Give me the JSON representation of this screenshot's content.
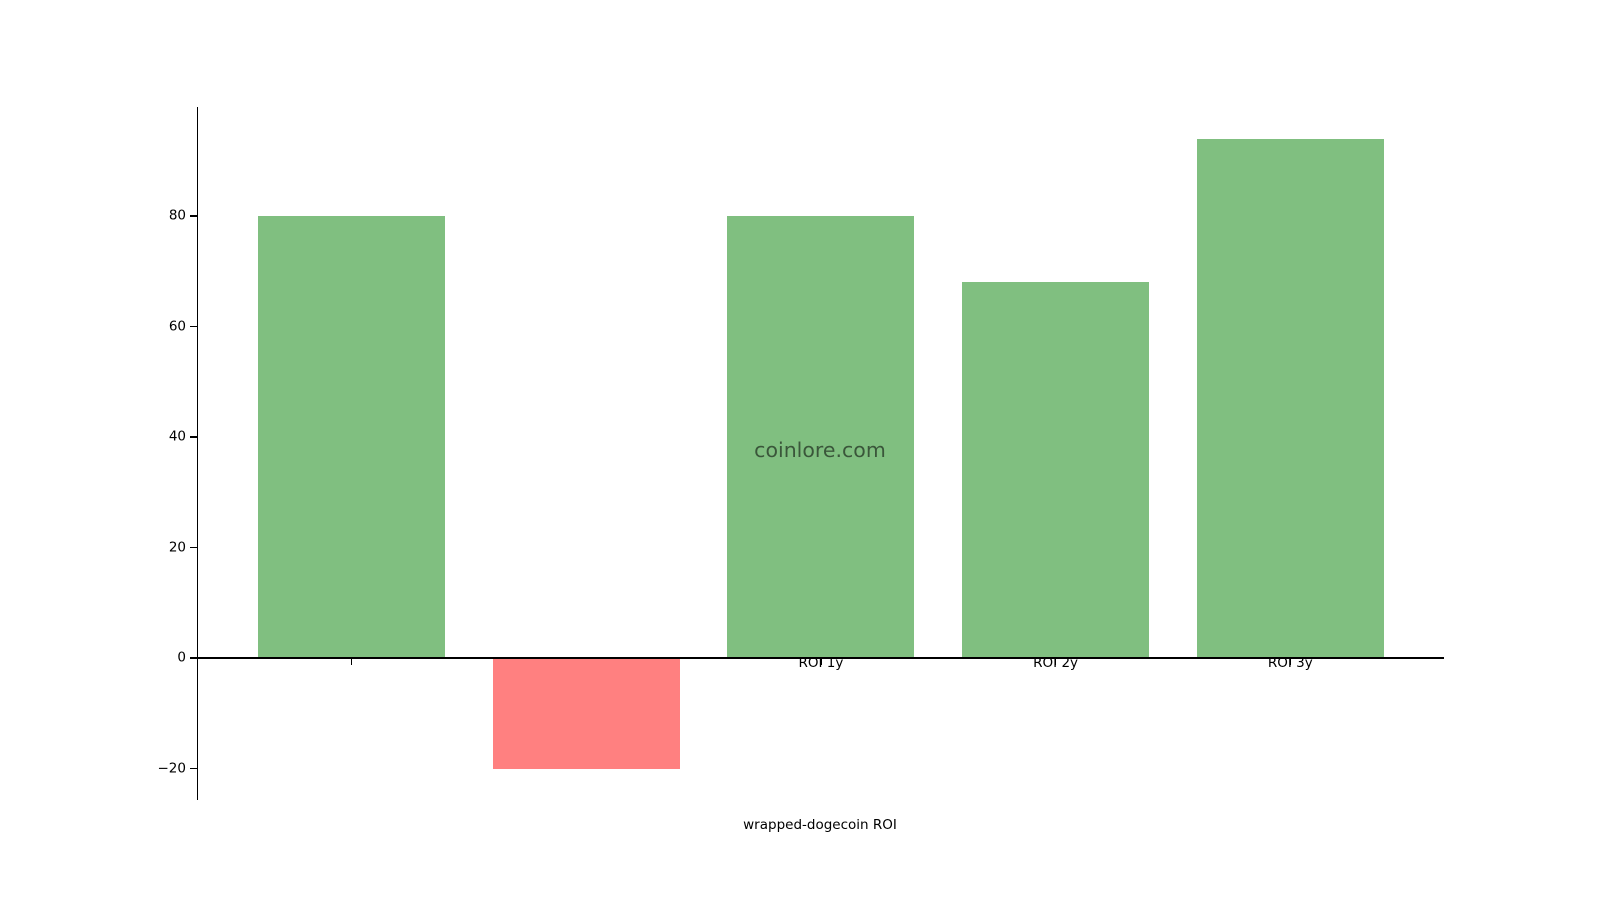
{
  "chart_data": {
    "type": "bar",
    "title": "wrapped-dogecoin ROI",
    "watermark": "coinlore.com",
    "categories": [
      "",
      "",
      "ROI 1y",
      "ROI 2y",
      "ROI 3y"
    ],
    "values": [
      80,
      -20,
      80,
      68,
      94
    ],
    "positive_color": "#80BF80",
    "negative_color": "#FF8080",
    "yticks": [
      {
        "value": -20,
        "label": "−20"
      },
      {
        "value": 0,
        "label": "0"
      },
      {
        "value": 20,
        "label": "20"
      },
      {
        "value": 40,
        "label": "40"
      },
      {
        "value": 60,
        "label": "60"
      },
      {
        "value": 80,
        "label": "80"
      }
    ],
    "ylim": [
      -25.7,
      99.7
    ],
    "xlabel": "",
    "ylabel": "",
    "grid": false,
    "legend": null
  }
}
